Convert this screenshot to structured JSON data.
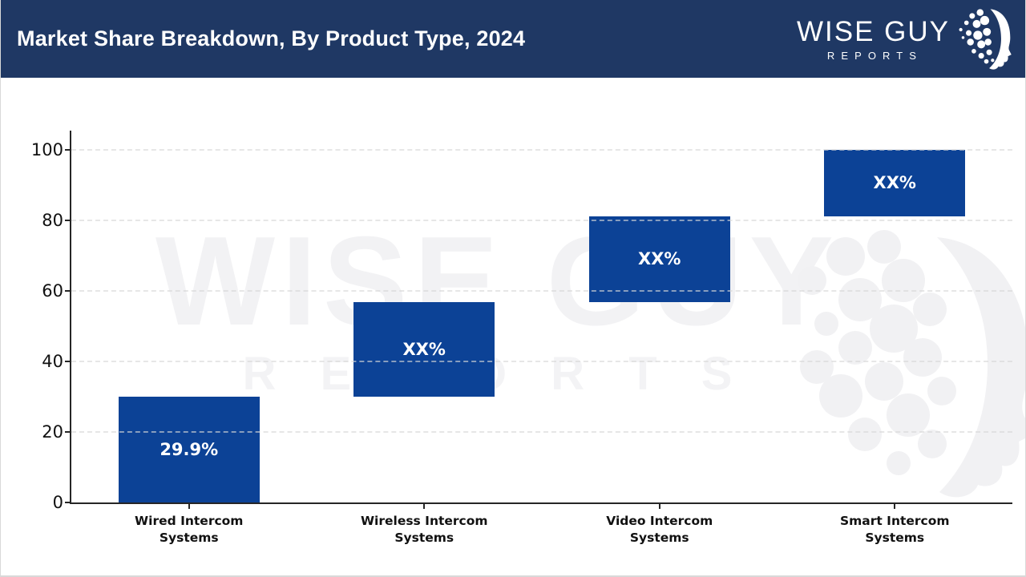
{
  "header": {
    "title": "Market Share Breakdown, By Product Type, 2024",
    "background": "#1F3864",
    "logo": {
      "line1": "WISE GUY",
      "line2": "REPORTS"
    }
  },
  "watermark": {
    "line1": "WISE GUY",
    "line2": "REPORTS"
  },
  "chart_data": {
    "type": "bar",
    "subtype": "waterfall",
    "title": "Market Share Breakdown, By Product Type, 2024",
    "categories": [
      "Wired Intercom Systems",
      "Wireless Intercom Systems",
      "Video Intercom Systems",
      "Smart Intercom Systems"
    ],
    "category_lines": [
      [
        "Wired Intercom",
        "Systems"
      ],
      [
        "Wireless Intercom",
        "Systems"
      ],
      [
        "Video Intercom",
        "Systems"
      ],
      [
        "Smart Intercom",
        "Systems"
      ]
    ],
    "segments": [
      {
        "category": "Wired Intercom Systems",
        "start": 0,
        "end": 29.9,
        "label": "29.9%"
      },
      {
        "category": "Wireless Intercom Systems",
        "start": 29.9,
        "end": 56.9,
        "label": "XX%"
      },
      {
        "category": "Video Intercom Systems",
        "start": 56.9,
        "end": 81.2,
        "label": "XX%"
      },
      {
        "category": "Smart Intercom Systems",
        "start": 81.2,
        "end": 100,
        "label": "XX%"
      }
    ],
    "xlabel": "",
    "ylabel": "",
    "ylim": [
      0,
      105
    ],
    "yticks": [
      0,
      20,
      40,
      60,
      80,
      100
    ],
    "grid": "horizontal-dashed",
    "legend": "none",
    "colors": {
      "bar": "#0C4296",
      "bar_label": "#FFFFFF",
      "grid": "#D9D9D9",
      "axis": "#262626",
      "tick_text": "#111111",
      "header_bg": "#1F3864",
      "header_text": "#FFFFFF",
      "watermark": "#F2F2F4"
    }
  }
}
